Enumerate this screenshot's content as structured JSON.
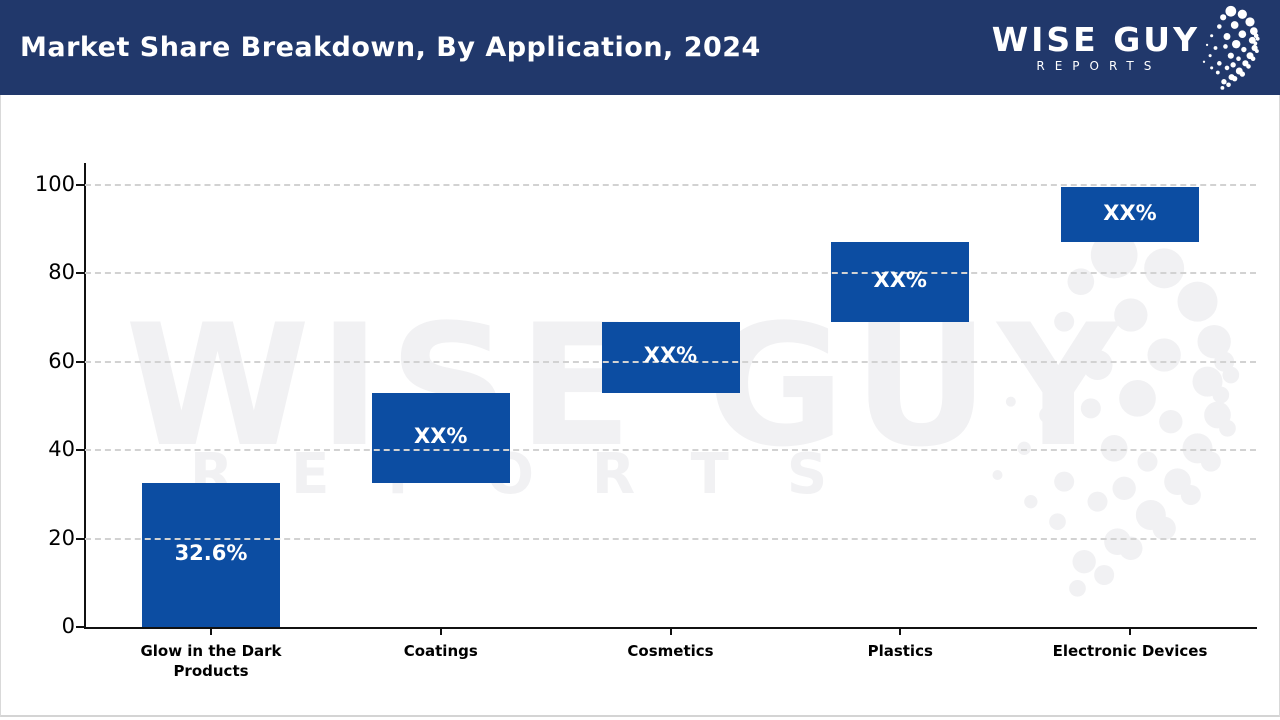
{
  "header": {
    "title": "Market Share Breakdown, By Application, 2024",
    "logo": {
      "line1": "WISE GUY",
      "line2": "REPORTS"
    }
  },
  "watermark": {
    "line1": "WISE GUY",
    "line2": "REPORTS"
  },
  "colors": {
    "header_background": "#21386b",
    "bar_blue": "#0c4da2",
    "bar_label_white": "#ffffff",
    "gridline_gray": "#d2d2d2",
    "watermark_gray": "#f1f1f3",
    "axis_black": "#111111"
  },
  "chart_data": {
    "type": "bar",
    "subtype": "waterfall",
    "title": "Market Share Breakdown, By Application, 2024",
    "xlabel": "",
    "ylabel": "",
    "ylim": [
      0,
      104.5
    ],
    "yticks": [
      0,
      20,
      40,
      60,
      80,
      100
    ],
    "grid": "dashed horizontal",
    "legend": "none",
    "categories": [
      "Glow in the Dark Products",
      "Coatings",
      "Cosmetics",
      "Plastics",
      "Electronic Devices"
    ],
    "x_tick_labels": [
      [
        "Glow in the Dark",
        "Products"
      ],
      [
        "Coatings"
      ],
      [
        "Cosmetics"
      ],
      [
        "Plastics"
      ],
      [
        "Electronic Devices"
      ]
    ],
    "segments": [
      {
        "category": "Glow in the Dark Products",
        "label": "32.6%",
        "start": 0,
        "end": 32.6
      },
      {
        "category": "Coatings",
        "label": "XX%",
        "start": 32.6,
        "end": 53
      },
      {
        "category": "Cosmetics",
        "label": "XX%",
        "start": 53,
        "end": 69
      },
      {
        "category": "Plastics",
        "label": "XX%",
        "start": 69,
        "end": 87
      },
      {
        "category": "Electronic Devices",
        "label": "XX%",
        "start": 87,
        "end": 99.6
      }
    ]
  }
}
